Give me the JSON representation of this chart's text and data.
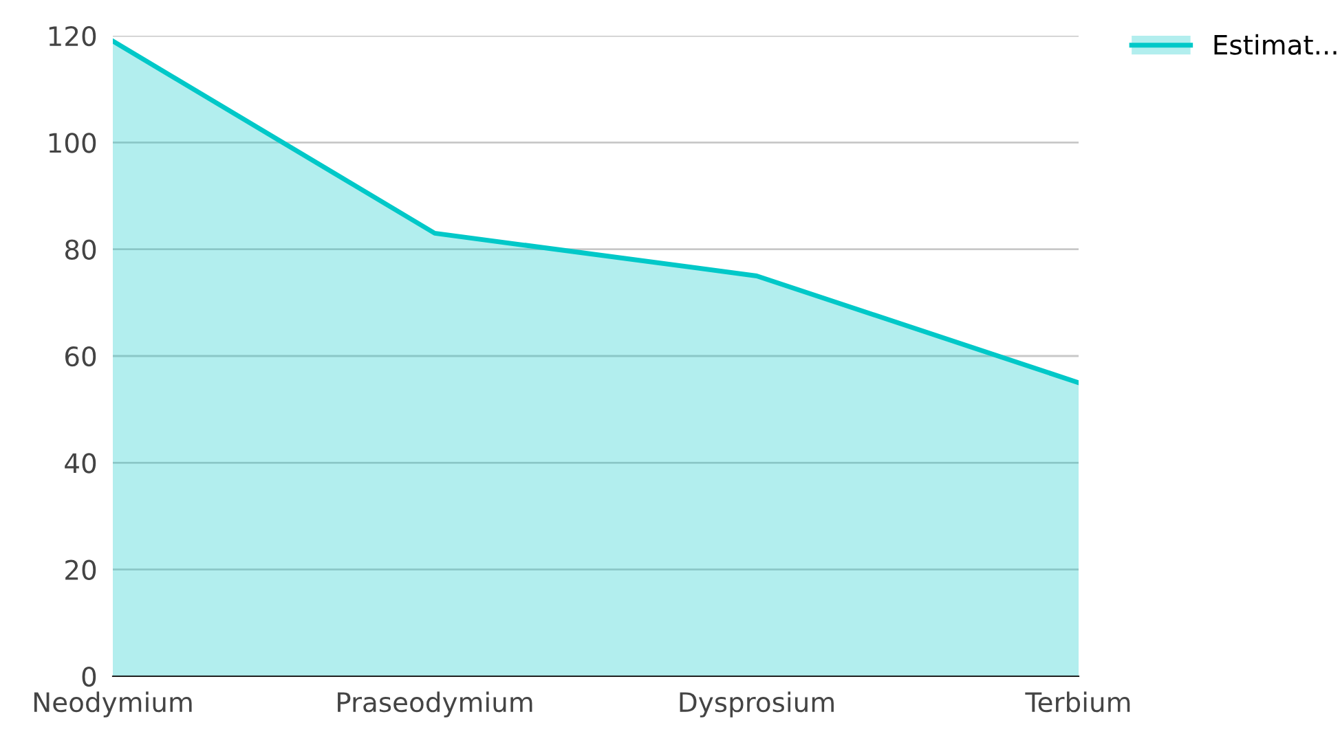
{
  "chart_data": {
    "type": "area",
    "categories": [
      "Neodymium",
      "Praseodymium",
      "Dysprosium",
      "Terbium"
    ],
    "series": [
      {
        "name": "Estimat...",
        "color": "#00c8c8",
        "values": [
          119,
          83,
          75,
          55
        ]
      }
    ],
    "ylim": [
      0,
      120
    ],
    "yticks": [
      0,
      20,
      40,
      60,
      80,
      100,
      120
    ],
    "grid": "y",
    "legend": "top right"
  }
}
